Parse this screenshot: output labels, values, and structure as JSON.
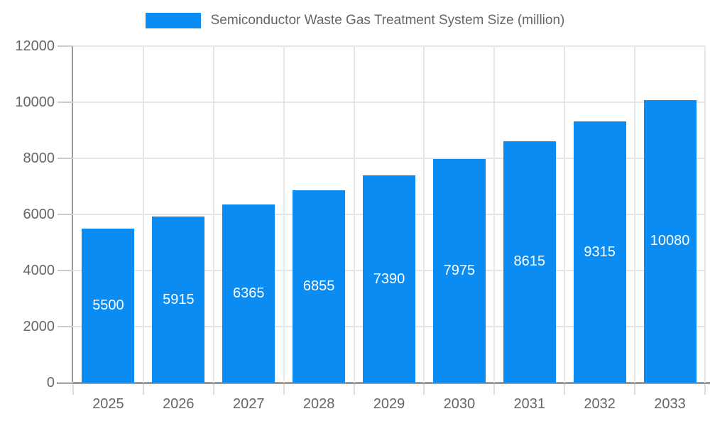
{
  "chart_data": {
    "type": "bar",
    "title": "Semiconductor Waste Gas Treatment System Size (million)",
    "legend_position": "top-center",
    "categories": [
      "2025",
      "2026",
      "2027",
      "2028",
      "2029",
      "2030",
      "2031",
      "2032",
      "2033"
    ],
    "values": [
      5500,
      5915,
      6365,
      6855,
      7390,
      7975,
      8615,
      9315,
      10080
    ],
    "xlabel": "",
    "ylabel": "",
    "ylim": [
      0,
      12000
    ],
    "yticks": [
      0,
      2000,
      4000,
      6000,
      8000,
      10000,
      12000
    ],
    "grid": true,
    "bar_color": "#0a8cf2",
    "value_label_color": "#ffffff",
    "axis_label_color": "#666666",
    "grid_color": "#e6e6e6",
    "axis_line_color": "#999999",
    "background_color": "#ffffff"
  }
}
